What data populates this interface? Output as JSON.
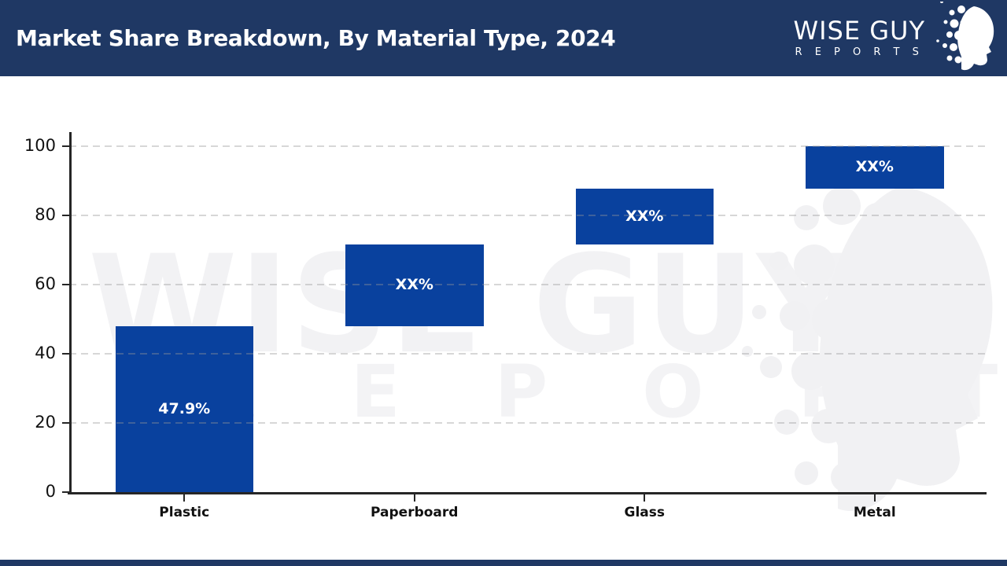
{
  "header": {
    "title": "Market Share Breakdown, By Material Type, 2024",
    "logo": {
      "line1": "WISE GUY",
      "line2": "R E P O R T S"
    }
  },
  "chart_data": {
    "type": "bar",
    "subtype": "waterfall",
    "title": "Market Share Breakdown, By Material Type, 2024",
    "categories": [
      "Plastic",
      "Paperboard",
      "Glass",
      "Metal"
    ],
    "segments": [
      {
        "category": "Plastic",
        "label": "47.9%",
        "start": 0,
        "end": 47.9
      },
      {
        "category": "Paperboard",
        "label": "XX%",
        "start": 47.9,
        "end": 71.6
      },
      {
        "category": "Glass",
        "label": "XX%",
        "start": 71.6,
        "end": 87.7
      },
      {
        "category": "Metal",
        "label": "XX%",
        "start": 87.7,
        "end": 100
      }
    ],
    "yticks": [
      0,
      20,
      40,
      60,
      80,
      100
    ],
    "ylim": [
      0,
      104
    ],
    "xlabel": "",
    "ylabel": "",
    "grid": "dashed-horizontal",
    "legend": "none",
    "bar_color": "#09419e",
    "label_color": "#ffffff"
  },
  "watermark": {
    "line1": "WISE GUY",
    "line2": "R E P O R T S"
  },
  "colors": {
    "header_bg": "#1f3864",
    "footer_bg": "#1f3864",
    "bar": "#09419e",
    "axis": "#262626",
    "grid": "#d9d9d9",
    "watermark": "#f2f2f4",
    "title_text": "#ffffff"
  }
}
